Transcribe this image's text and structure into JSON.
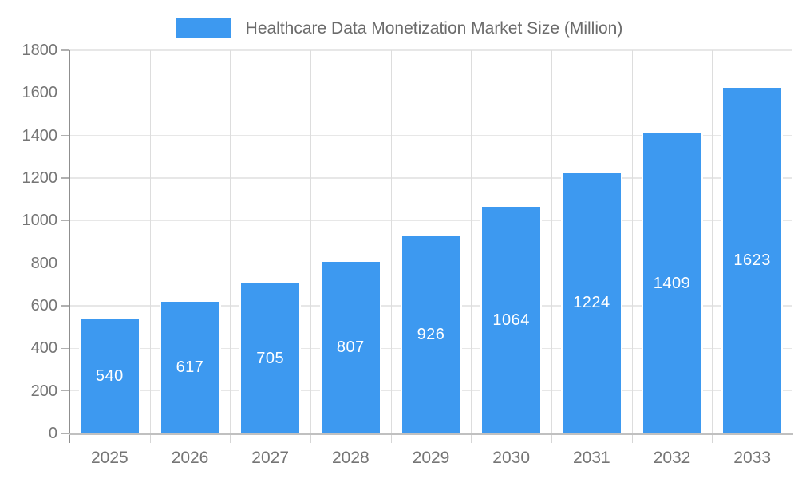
{
  "legend": {
    "label": "Healthcare Data Monetization Market Size (Million)"
  },
  "chart_data": {
    "type": "bar",
    "title": "Healthcare Data Monetization Market Size (Million)",
    "categories": [
      "2025",
      "2026",
      "2027",
      "2028",
      "2029",
      "2030",
      "2031",
      "2032",
      "2033"
    ],
    "values": [
      540,
      617,
      705,
      807,
      926,
      1064,
      1224,
      1409,
      1623
    ],
    "value_labels": [
      "540",
      "617",
      "705",
      "807",
      "926",
      "1064",
      "1224",
      "1409",
      "1623"
    ],
    "xlabel": "",
    "ylabel": "",
    "ylim": [
      0,
      1800
    ],
    "ytick_step": 200,
    "ytick_labels": [
      "0",
      "200",
      "400",
      "600",
      "800",
      "1000",
      "1200",
      "1400",
      "1600",
      "1800"
    ],
    "grid": true,
    "legend_position": "top-center"
  },
  "colors": {
    "bar": "#3D99F0",
    "bar_value_text": "#FFFFFF",
    "legend_swatch": "#3D99F0",
    "legend_text": "#6B6B6B",
    "axis_tick_text": "#757575",
    "hgrid": "#E7E7E7",
    "vgrid": "#DDDDDD",
    "y_axis_line": "#8F8F8F",
    "x_axis_line": "#C0C0C0",
    "y_tick": "#B0B0B0",
    "x_tick": "#D6D6D6",
    "background": "#FFFFFF"
  }
}
